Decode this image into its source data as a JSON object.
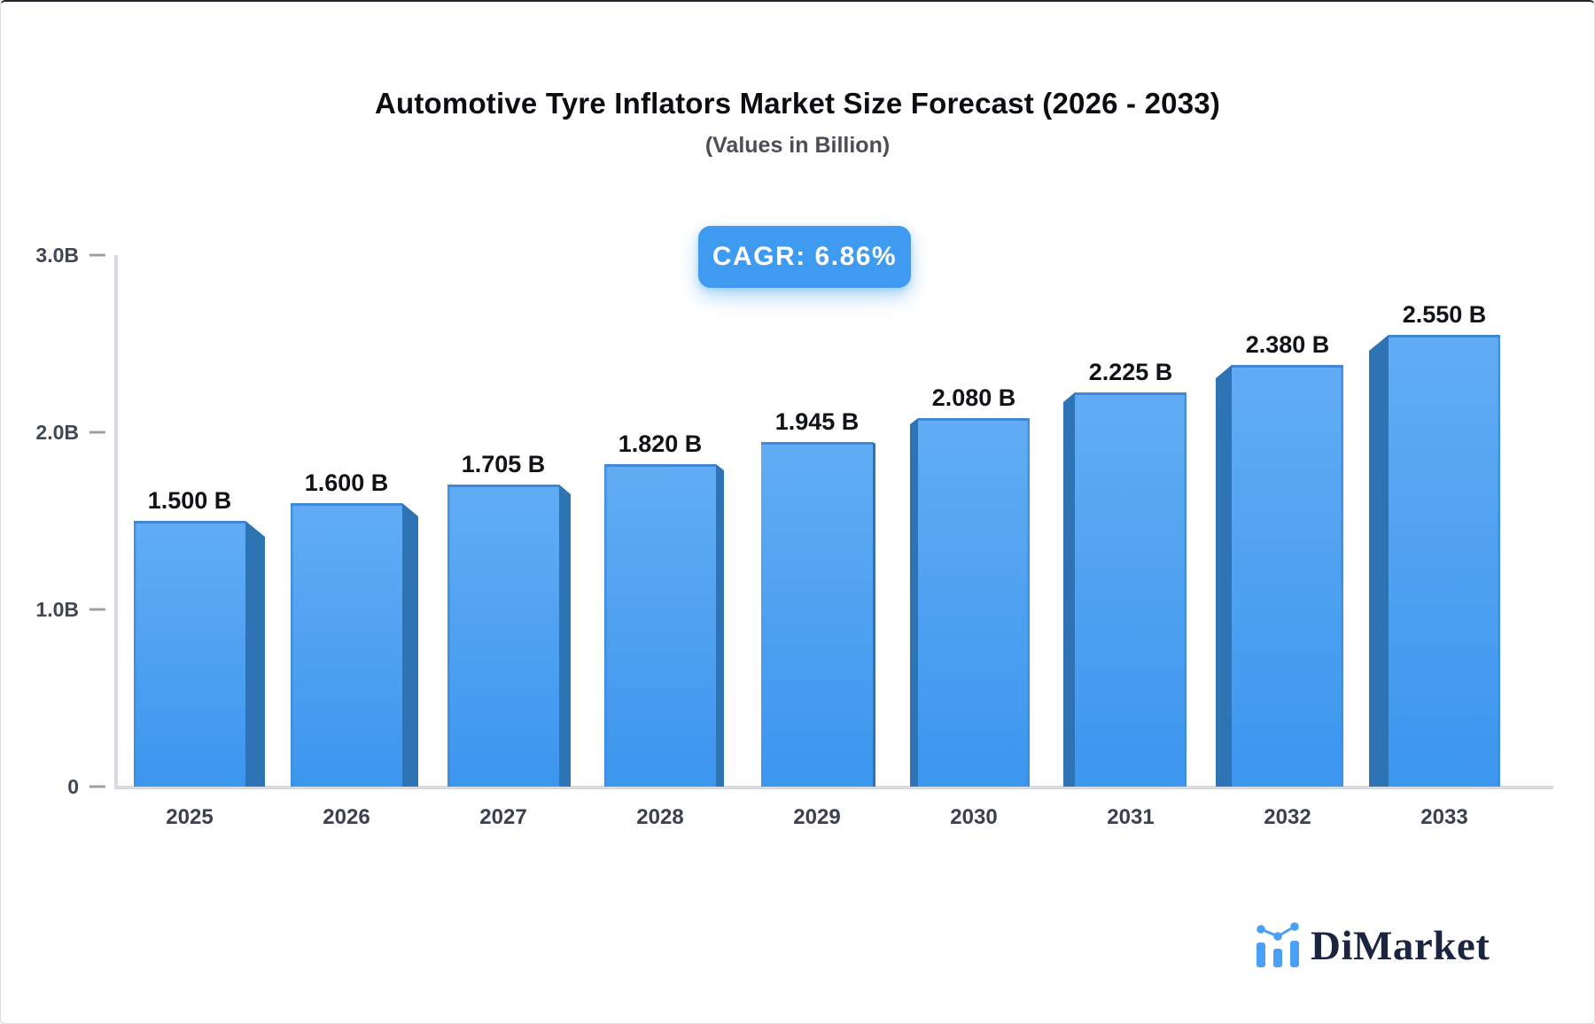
{
  "header": {
    "title": "Automotive Tyre Inflators Market Size Forecast (2026 - 2033)",
    "subtitle": "(Values in Billion)"
  },
  "badge": {
    "label": "CAGR: 6.86%"
  },
  "brand": {
    "name": "DiMarket"
  },
  "chart_data": {
    "type": "bar",
    "title": "Automotive Tyre Inflators Market Size Forecast (2026 - 2033)",
    "subtitle": "(Values in Billion)",
    "unit": "Billion",
    "cagr": "6.86%",
    "categories": [
      "2025",
      "2026",
      "2027",
      "2028",
      "2029",
      "2030",
      "2031",
      "2032",
      "2033"
    ],
    "values": [
      1.5,
      1.6,
      1.705,
      1.82,
      1.945,
      2.08,
      2.225,
      2.38,
      2.55
    ],
    "value_labels": [
      "1.500 B",
      "1.600 B",
      "1.705 B",
      "1.820 B",
      "1.945 B",
      "2.080 B",
      "2.225 B",
      "2.380 B",
      "2.550 B"
    ],
    "ylim": [
      0,
      3
    ],
    "yticks": [
      {
        "value": 0,
        "label": "0"
      },
      {
        "value": 1,
        "label": "1.0B"
      },
      {
        "value": 2,
        "label": "2.0B"
      },
      {
        "value": 3,
        "label": "3.0B"
      }
    ],
    "grid": false,
    "legend": "none",
    "colors": {
      "bar_face_top": "#61ADF4",
      "bar_face_bottom": "#3C96EE",
      "bar_side": "#2E74B5",
      "bar_top_edge": "#4187D8",
      "bar_outer_edge": "#3F8CDC",
      "axis_line": "#D8DAE1",
      "tick_dash": "#9BA1AB",
      "tick_text": "#414854",
      "value_text": "#101318",
      "year_text": "#3A4150",
      "badge_bg": "#3E9BF0",
      "logo_blue": "#4AA0F5",
      "logo_navy": "#1C2540"
    }
  }
}
